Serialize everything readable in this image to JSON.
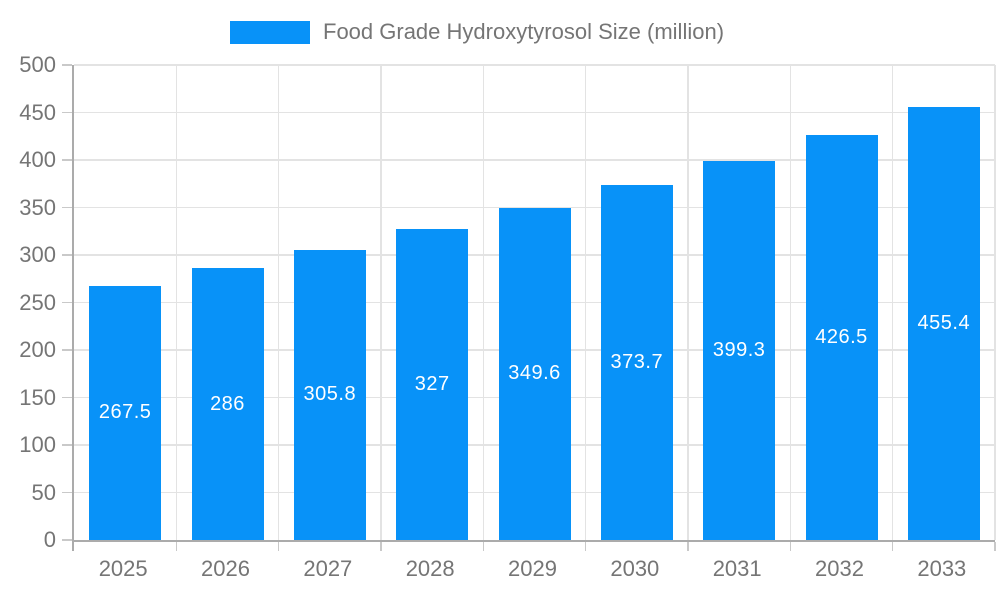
{
  "legend": {
    "label": "Food Grade Hydroxytyrosol Size (million)",
    "swatch_color": "#0892f8"
  },
  "chart_data": {
    "type": "bar",
    "title": "Food Grade Hydroxytyrosol Size (million)",
    "categories": [
      "2025",
      "2026",
      "2027",
      "2028",
      "2029",
      "2030",
      "2031",
      "2032",
      "2033"
    ],
    "values": [
      267.5,
      286,
      305.8,
      327,
      349.6,
      373.7,
      399.3,
      426.5,
      455.4
    ],
    "series": [
      {
        "name": "Food Grade Hydroxytyrosol Size (million)",
        "values": [
          267.5,
          286,
          305.8,
          327,
          349.6,
          373.7,
          399.3,
          426.5,
          455.4
        ]
      }
    ],
    "xlabel": "",
    "ylabel": "",
    "ylim": [
      0,
      500
    ],
    "yticks": [
      0,
      50,
      100,
      150,
      200,
      250,
      300,
      350,
      400,
      450,
      500
    ],
    "grid": true,
    "legend_position": "top",
    "value_labels": "inside-center-white",
    "bar_color": "#0892f8",
    "grid_color": "#e3e3e3",
    "axis_color": "#ababab",
    "text_color": "#757575",
    "value_label_color": "#ffffff"
  }
}
